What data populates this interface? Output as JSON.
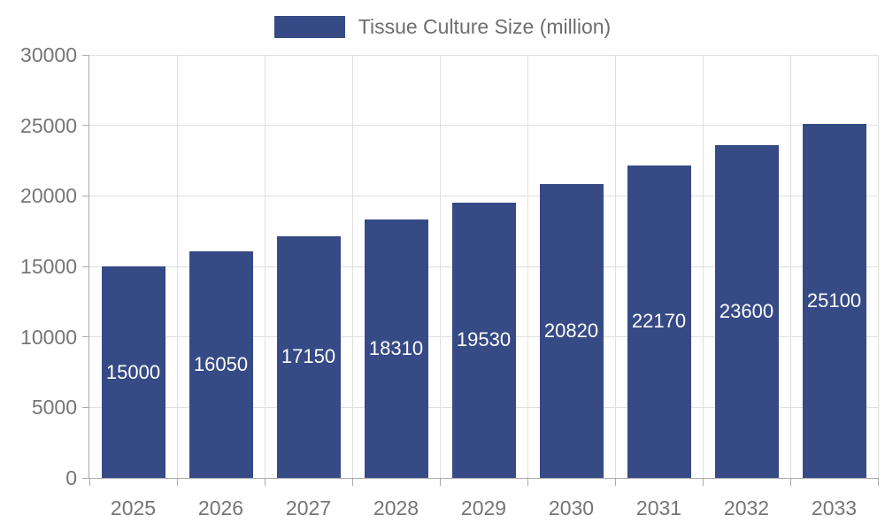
{
  "chart_data": {
    "type": "bar",
    "title": "",
    "legend": "Tissue Culture Size (million)",
    "categories": [
      "2025",
      "2026",
      "2027",
      "2028",
      "2029",
      "2030",
      "2031",
      "2032",
      "2033"
    ],
    "values": [
      15000,
      16050,
      17150,
      18310,
      19530,
      20820,
      22170,
      23600,
      25100
    ],
    "xlabel": "",
    "ylabel": "",
    "ylim": [
      0,
      30000
    ],
    "yticks": [
      0,
      5000,
      10000,
      15000,
      20000,
      25000,
      30000
    ],
    "grid": "both",
    "legend_position": "top-center",
    "bar_labels_inside": true,
    "colors": {
      "bar": "#364A85",
      "bar_label": "#ffffff",
      "axis_text": "#757575",
      "legend_text": "#6e6e6e",
      "grid_line": "#e0e0e0",
      "axis_line": "#aaaaaa"
    }
  }
}
